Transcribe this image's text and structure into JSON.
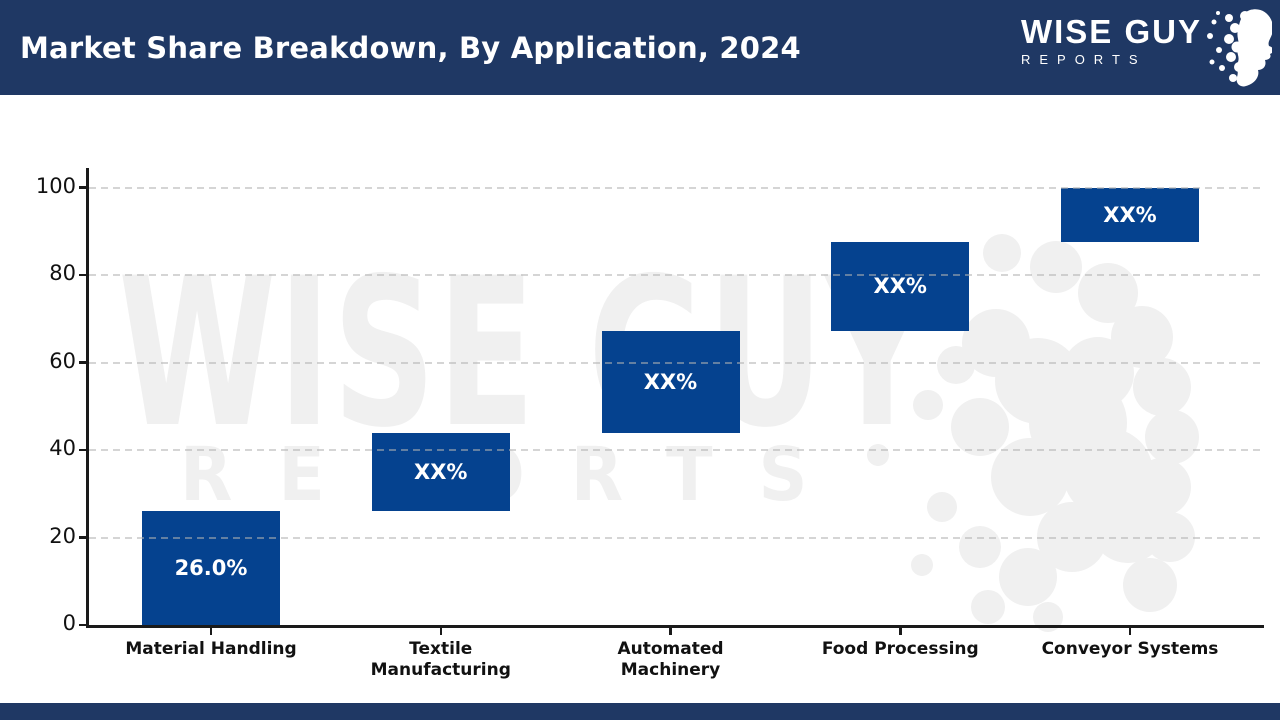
{
  "header": {
    "title": "Market Share Breakdown, By Application, 2024",
    "brand": {
      "line1": "WISE GUY",
      "line2": "REPORTS"
    }
  },
  "watermark": {
    "line1": "WISE GUY",
    "line2": "REPORTS"
  },
  "colors": {
    "header_navy": "#1f3864",
    "bar_blue": "#05428f",
    "gridline_gray": "#d9d9d9",
    "watermark_gray": "#f0f0f0",
    "label_white": "#ffffff",
    "axis_black": "#1a1a1a"
  },
  "chart_data": {
    "type": "bar",
    "subtype": "waterfall-floating-segments",
    "title": "Market Share Breakdown, By Application, 2024",
    "categories": [
      "Material Handling",
      "Textile\nManufacturing",
      "Automated\nMachinery",
      "Food Processing",
      "Conveyor Systems"
    ],
    "segments": [
      {
        "category": "Material Handling",
        "start": 0,
        "end": 26,
        "label": "26.0%"
      },
      {
        "category": "Textile Manufacturing",
        "start": 26,
        "end": 43.8,
        "label": "XX%"
      },
      {
        "category": "Automated Machinery",
        "start": 43.8,
        "end": 67.3,
        "label": "XX%"
      },
      {
        "category": "Food Processing",
        "start": 67.3,
        "end": 87.5,
        "label": "XX%"
      },
      {
        "category": "Conveyor Systems",
        "start": 87.5,
        "end": 100,
        "label": "XX%"
      }
    ],
    "xlabel": "",
    "ylabel": "",
    "yticks": [
      0,
      20,
      40,
      60,
      80,
      100
    ],
    "ylim": [
      0,
      105
    ],
    "grid": "horizontal-dashed",
    "legend": "none"
  }
}
